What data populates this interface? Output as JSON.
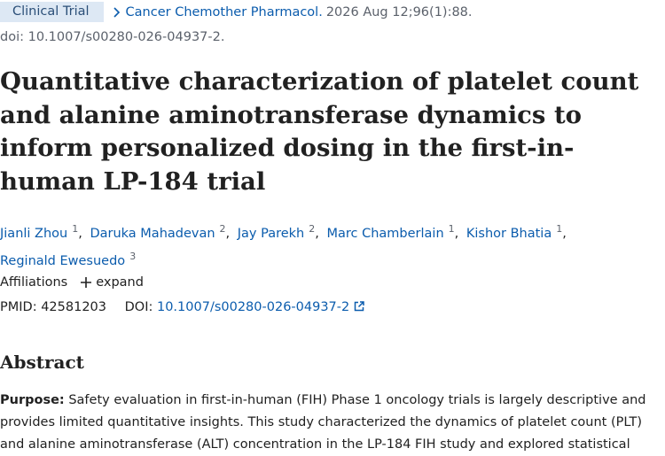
{
  "header": {
    "badge": "Clinical Trial",
    "journal": "Cancer Chemother Pharmacol.",
    "citation": "2026 Aug 12;96(1):88.",
    "doi_line": "doi: 10.1007/s00280-026-04937-2."
  },
  "title": "Quantitative characterization of platelet count and alanine aminotransferase dynamics to inform personalized dosing in the first-in-human LP-184 trial",
  "authors": [
    {
      "name": "Jianli Zhou",
      "aff": "1"
    },
    {
      "name": "Daruka Mahadevan",
      "aff": "2"
    },
    {
      "name": "Jay Parekh",
      "aff": "2"
    },
    {
      "name": "Marc Chamberlain",
      "aff": "1"
    },
    {
      "name": "Kishor Bhatia",
      "aff": "1"
    },
    {
      "name": "Reginald Ewesuedo",
      "aff": "3"
    }
  ],
  "affiliations": {
    "label": "Affiliations",
    "toggle": "expand"
  },
  "identifiers": {
    "pmid_label": "PMID:",
    "pmid": "42581203",
    "doi_label": "DOI:",
    "doi": "10.1007/s00280-026-04937-2"
  },
  "abstract": {
    "heading": "Abstract",
    "purpose_label": "Purpose:",
    "purpose_text": "Safety evaluation in first-in-human (FIH) Phase 1 oncology trials is largely descriptive and provides limited quantitative insights. This study characterized the dynamics of platelet count (PLT) and alanine aminotransferase (ALT) concentration in the LP-184 FIH study and explored statistical"
  }
}
